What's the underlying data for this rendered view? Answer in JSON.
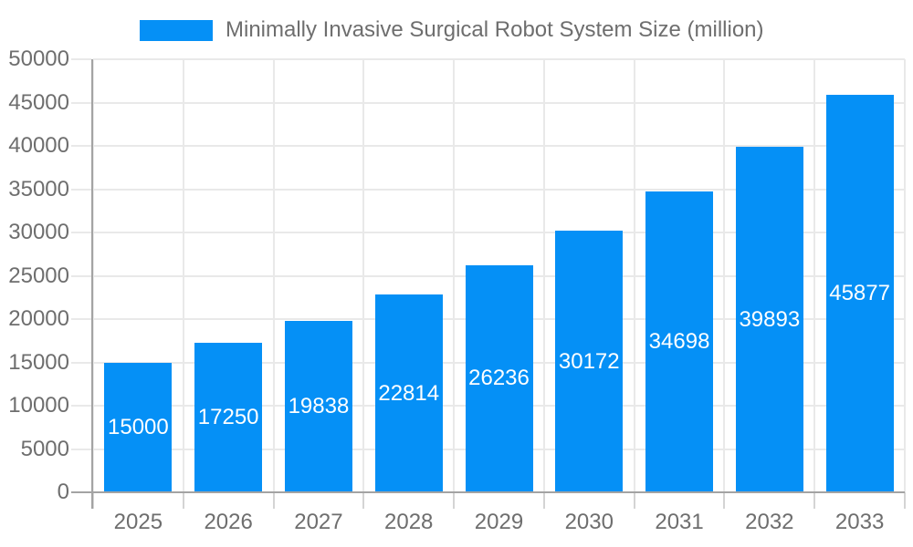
{
  "chart_data": {
    "type": "bar",
    "title": "Minimally Invasive Surgical Robot System Size (million)",
    "categories": [
      "2025",
      "2026",
      "2027",
      "2028",
      "2029",
      "2030",
      "2031",
      "2032",
      "2033"
    ],
    "values": [
      15000,
      17250,
      19838,
      22814,
      26236,
      30172,
      34698,
      39893,
      45877
    ],
    "xlabel": "",
    "ylabel": "",
    "ylim": [
      0,
      50000
    ],
    "ytick_step": 5000,
    "grid": true,
    "legend_position": "top",
    "colors": {
      "bar": "#0590F6",
      "value_label": "#FFFFFF",
      "axis_label": "#6E6E6E",
      "legend_label": "#6E6E6E",
      "grid_line": "#E9E9E9",
      "x_tick": "#D4D4D4",
      "axis_line": "#A3A3A3",
      "background": "#FFFFFF"
    }
  }
}
